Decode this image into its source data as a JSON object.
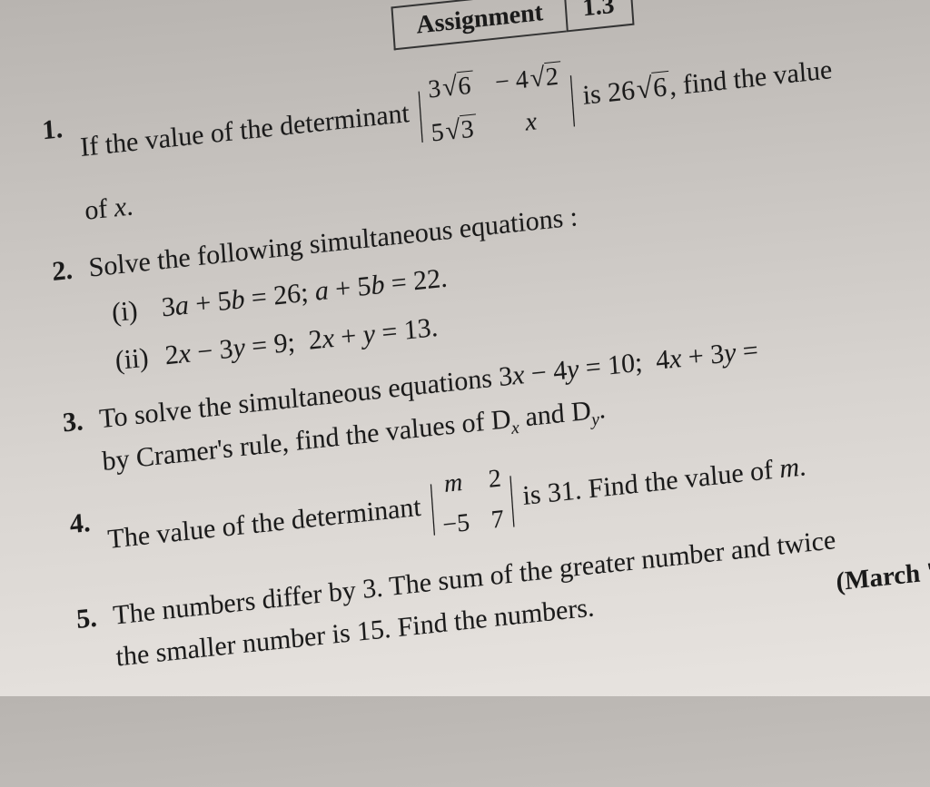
{
  "header": {
    "assignment_label": "Assignment",
    "assignment_number": "1.3"
  },
  "q1": {
    "num": "1.",
    "text_a": "If the value of the determinant",
    "det": {
      "a11": "3√6",
      "a12": "− 4√2",
      "a21": "5√3",
      "a22": "x"
    },
    "text_b": "is 26√6, find the value",
    "text_c": "of x."
  },
  "q2": {
    "num": "2.",
    "text": "Solve the following simultaneous equations :",
    "i_label": "(i)",
    "i_eq": "3a + 5b = 26; a + 5b = 22.",
    "ii_label": "(ii)",
    "ii_eq": "2x − 3y = 9;  2x + y = 13."
  },
  "q3": {
    "num": "3.",
    "text_a": "To solve the simultaneous equations",
    "eq_a": "3x − 4y = 10;",
    "eq_b": "4x + 3y =",
    "text_b": "by Cramer's rule, find the values of D",
    "sub_x": "x",
    "text_and": " and D",
    "sub_y": "y",
    "text_end": "."
  },
  "q4": {
    "num": "4.",
    "text_a": "The value of the determinant",
    "det": {
      "a11": "m",
      "a12": "2",
      "a21": "−5",
      "a22": "7"
    },
    "text_b": "is 31. Find the value of m."
  },
  "q5": {
    "num": "5.",
    "text_a": "The numbers differ by 3. The sum of the greater number and twice",
    "text_b": "the smaller number is 15. Find the numbers.",
    "note": "(March '"
  }
}
